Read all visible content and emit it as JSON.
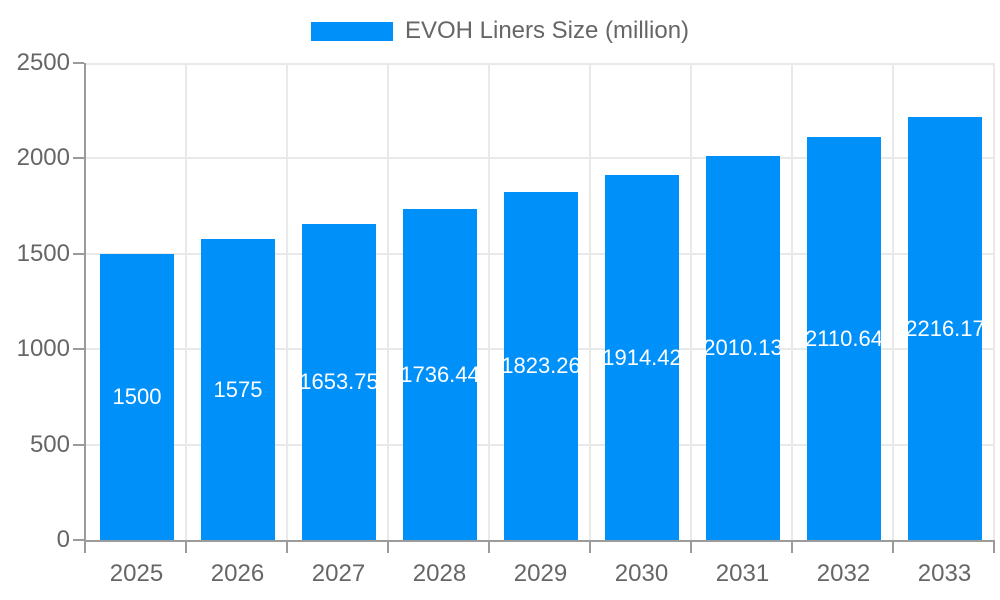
{
  "legend": {
    "label": "EVOH Liners Size (million)"
  },
  "chart_data": {
    "type": "bar",
    "title": "",
    "legend": "EVOH Liners Size (million)",
    "legend_position": "top",
    "xlabel": "",
    "ylabel": "",
    "categories": [
      "2025",
      "2026",
      "2027",
      "2028",
      "2029",
      "2030",
      "2031",
      "2032",
      "2033"
    ],
    "values": [
      1500,
      1575,
      1653.75,
      1736.44,
      1823.26,
      1914.42,
      2010.13,
      2110.64,
      2216.17
    ],
    "bar_labels": [
      "1500",
      "1575",
      "1653.75",
      "1736.44",
      "1823.26",
      "1914.42",
      "2010.13",
      "2110.64",
      "2216.17"
    ],
    "ylim": [
      0,
      2500
    ],
    "yticks": [
      0,
      500,
      1000,
      1500,
      2000,
      2500
    ],
    "grid": true,
    "colors": {
      "bar": "#0090FA",
      "grid": "#E9E9E9",
      "axis": "#9B9B9B",
      "tick_text": "#666666",
      "legend_text": "#666666",
      "bar_label": "#FFFFFF"
    }
  }
}
